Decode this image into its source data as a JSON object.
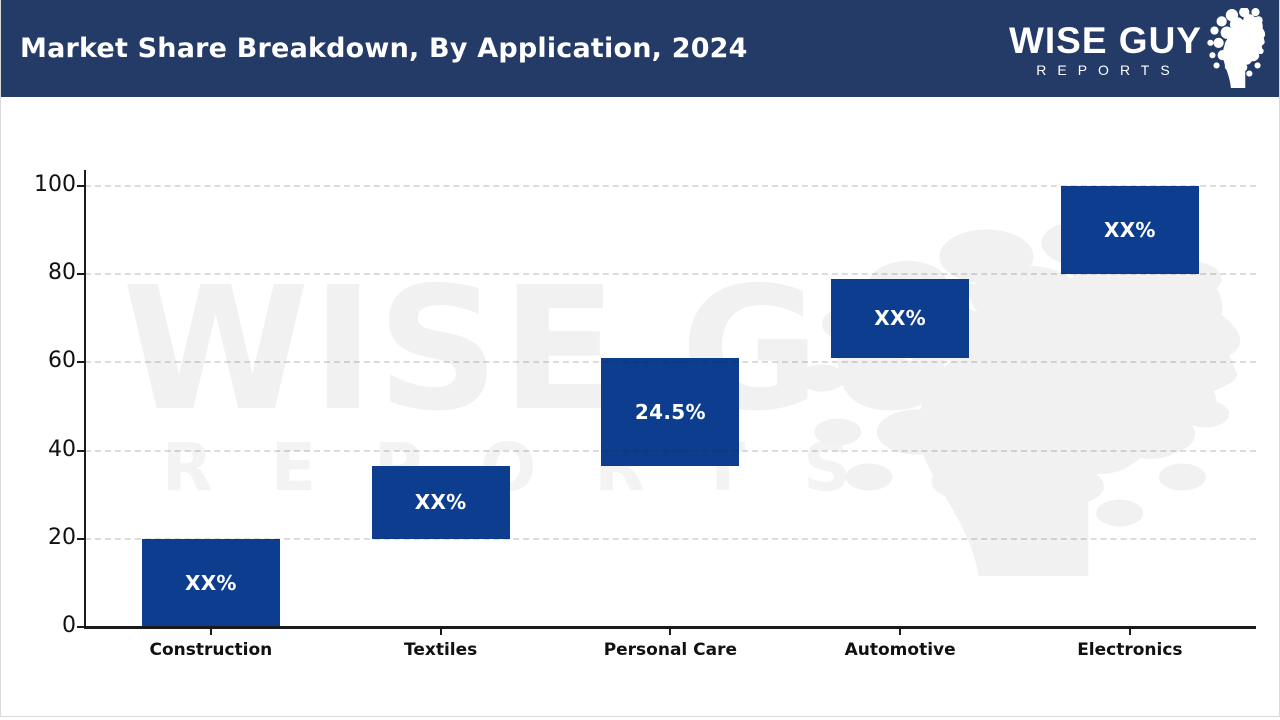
{
  "header": {
    "title": "Market Share Breakdown, By Application, 2024",
    "background_color": "#243a67",
    "logo": {
      "line1": "WISE GUY",
      "line2": "REPORTS"
    }
  },
  "watermark": {
    "line1": "WISE GUY",
    "line2": "REPORTS"
  },
  "chart_data": {
    "type": "bar",
    "subtype": "waterfall-floating-bars",
    "title": "Market Share Breakdown, By Application, 2024",
    "categories": [
      "Construction",
      "Textiles",
      "Personal Care",
      "Automotive",
      "Electronics"
    ],
    "segments": [
      {
        "category": "Construction",
        "start": 0,
        "end": 20,
        "label": "XX%"
      },
      {
        "category": "Textiles",
        "start": 20,
        "end": 36.5,
        "label": "XX%"
      },
      {
        "category": "Personal Care",
        "start": 36.5,
        "end": 61,
        "label": "24.5%"
      },
      {
        "category": "Automotive",
        "start": 61,
        "end": 79,
        "label": "XX%"
      },
      {
        "category": "Electronics",
        "start": 80,
        "end": 100,
        "label": "XX%"
      }
    ],
    "yticks": [
      0,
      20,
      40,
      60,
      80,
      100
    ],
    "ylim": [
      0,
      100
    ],
    "xlabel": "",
    "ylabel": "",
    "grid": "horizontal-dashed",
    "legend": "none",
    "bar_color": "#0d3d8e",
    "axis_color": "#1a1a1a",
    "grid_color": "#dcdcdc",
    "value_label_color": "#ffffff"
  }
}
